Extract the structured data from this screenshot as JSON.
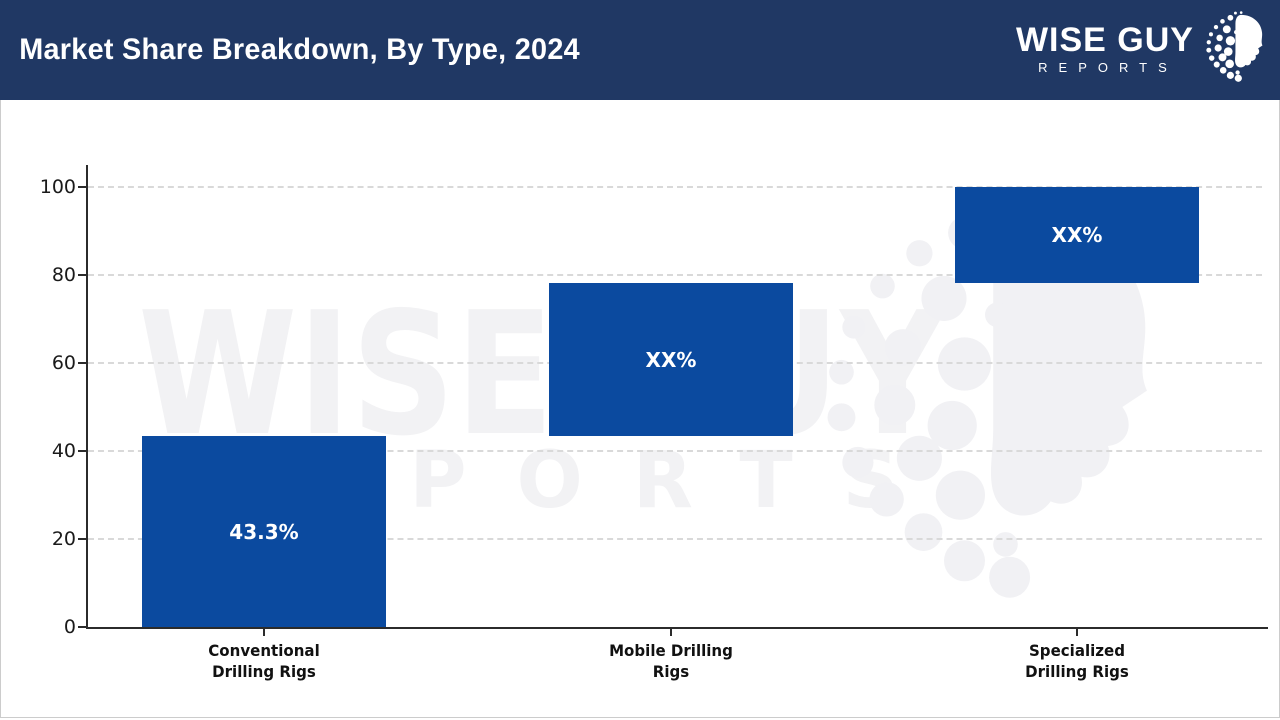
{
  "header": {
    "title": "Market Share Breakdown, By Type, 2024",
    "logo": {
      "brand_line1": "WISE GUY",
      "brand_line2": "REPORTS",
      "face_icon": "dotted-face-profile"
    }
  },
  "watermark": {
    "line1": "WISE GUY",
    "line2": "REPORTS",
    "face_icon": "dotted-face-profile"
  },
  "chart_data": {
    "type": "bar",
    "variant": "stacked-waterfall",
    "title": "Market Share Breakdown, By Type, 2024",
    "categories": [
      {
        "line1": "Conventional",
        "line2": "Drilling Rigs"
      },
      {
        "line1": "Mobile Drilling",
        "line2": "Rigs"
      },
      {
        "line1": "Specialized",
        "line2": "Drilling Rigs"
      }
    ],
    "series": [
      {
        "name": "Conventional Drilling Rigs",
        "start": 0,
        "end": 43.3,
        "label": "43.3%"
      },
      {
        "name": "Mobile Drilling Rigs",
        "start": 43.3,
        "end": 78.2,
        "label": "XX%"
      },
      {
        "name": "Specialized Drilling Rigs",
        "start": 78.2,
        "end": 100,
        "label": "XX%"
      }
    ],
    "ylim": [
      0,
      100
    ],
    "yticks": [
      0,
      20,
      40,
      60,
      80,
      100
    ],
    "grid": "horizontal-dashed",
    "legend": "none",
    "xlabel": "",
    "ylabel": ""
  },
  "colors": {
    "header_bg": "#203864",
    "bar_fill": "#0b4a9f",
    "bar_label": "#ffffff",
    "gridline": "#d9d9d9",
    "axis": "#2b2b2b",
    "tick_text": "#1a1a1a",
    "category_text": "#111111",
    "watermark": "#f2f2f4",
    "page_border": "#cccccc"
  }
}
